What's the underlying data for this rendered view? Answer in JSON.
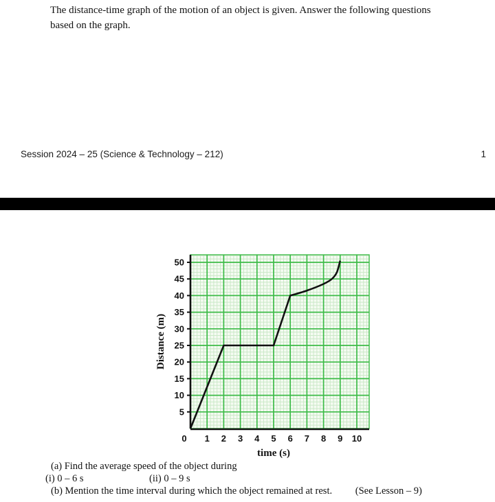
{
  "intro": {
    "line1": "The distance-time graph of the motion of an object is given. Answer the following questions",
    "line2": "based on the graph."
  },
  "footer": {
    "session_label": "Session 2024 – 25 (Science & Technology – 212)",
    "page_number": "1"
  },
  "questions": {
    "a": "(a) Find the average speed of the object during",
    "i": "(i) 0 – 6 s",
    "ii": "(ii) 0 – 9 s",
    "b": "(b) Mention the time interval during which the object remained at rest.",
    "see_lesson": "(See Lesson – 9)"
  },
  "chart_data": {
    "type": "line",
    "title": "",
    "xlabel": "time (s)",
    "ylabel": "Distance (m)",
    "x_ticks": [
      0,
      1,
      2,
      3,
      4,
      5,
      6,
      7,
      8,
      9,
      10
    ],
    "y_ticks": [
      5,
      10,
      15,
      20,
      25,
      30,
      35,
      40,
      45,
      50
    ],
    "xlim": [
      0,
      10.75
    ],
    "ylim": [
      0,
      52.3
    ],
    "minor_divisions_per_major": 5,
    "grid": "fine green graph paper, major lines every 1 s and 5 m",
    "legend": "none",
    "series": [
      {
        "name": "distance-time curve",
        "points": [
          [
            0,
            0
          ],
          [
            2,
            25
          ],
          [
            5,
            25
          ],
          [
            6,
            40
          ],
          [
            7,
            41.5
          ],
          [
            8,
            43.5
          ],
          [
            8.5,
            45
          ],
          [
            8.8,
            47
          ],
          [
            9,
            50.5
          ]
        ],
        "smooth_from_index": 3,
        "description": "0–2 s uniform rise 0→25 m; 2–5 s at rest at 25 m; 5–6 s uniform rise 25→40 m; 6–9 s gradual curved rise 40→~50 m steepening near 9 s"
      }
    ],
    "colors": {
      "major_grid": "#3cbb47",
      "minor_grid": "#cbe9c8",
      "grid_bg": "#f5fbf2",
      "curve": "#111111",
      "axis": "#111111"
    }
  }
}
